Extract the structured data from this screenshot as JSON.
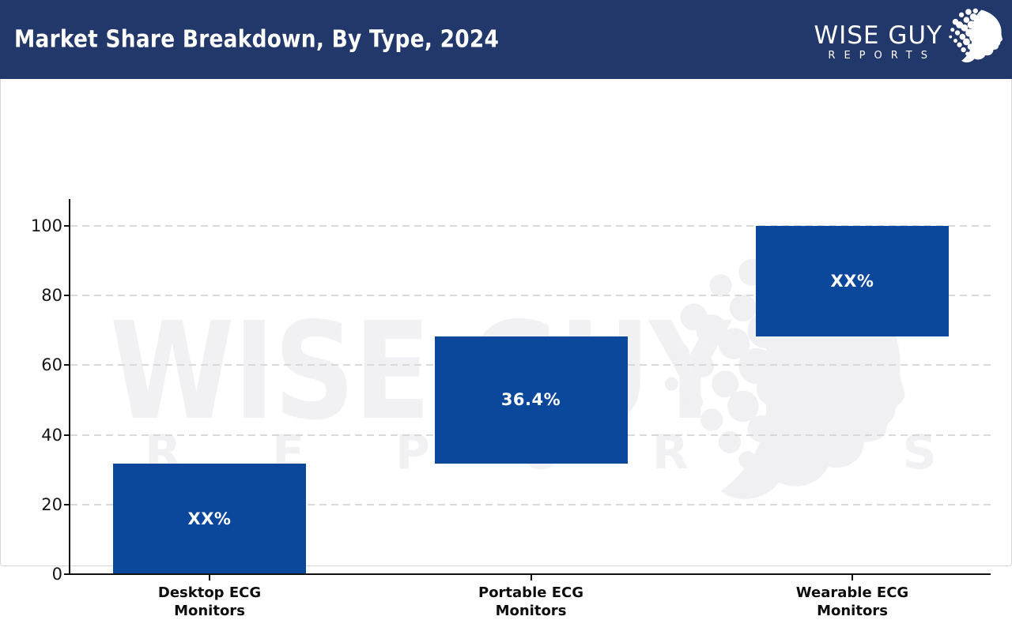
{
  "header": {
    "title": "Market Share Breakdown, By Type, 2024",
    "logo": {
      "line1": "WISE GUY",
      "line2": "REPORTS"
    }
  },
  "watermark": {
    "line1": "WISE GUY",
    "line2": "R E P O R T S"
  },
  "chart_data": {
    "type": "bar",
    "subtype": "floating-segment-waterfall",
    "title": "Market Share Breakdown, By Type, 2024",
    "xlabel": "",
    "ylabel": "",
    "ylim": [
      0,
      108
    ],
    "yticks": [
      0,
      20,
      40,
      60,
      80,
      100
    ],
    "grid": "horizontal-dashed",
    "legend": "none",
    "bar_color": "#0b489c",
    "value_label_color": "#ffffff",
    "categories": [
      "Desktop ECG Monitors",
      "Portable ECG Monitors",
      "Wearable ECG Monitors"
    ],
    "bars": [
      {
        "category": "Desktop ECG Monitors",
        "label_lines": [
          "Desktop ECG",
          "Monitors"
        ],
        "start": 0,
        "end": 31.8,
        "value_label": "XX%"
      },
      {
        "category": "Portable ECG Monitors",
        "label_lines": [
          "Portable ECG",
          "Monitors"
        ],
        "start": 31.8,
        "end": 68.2,
        "value_label": "36.4%"
      },
      {
        "category": "Wearable ECG Monitors",
        "label_lines": [
          "Wearable ECG",
          "Monitors"
        ],
        "start": 68.2,
        "end": 100,
        "value_label": "XX%"
      }
    ]
  },
  "colors": {
    "header_bg": "#22386a",
    "bar": "#0b489c",
    "gridline": "#d9d9d9",
    "axis": "#111111",
    "card_border": "#d7d7d7",
    "watermark": "#f1f1f3"
  }
}
